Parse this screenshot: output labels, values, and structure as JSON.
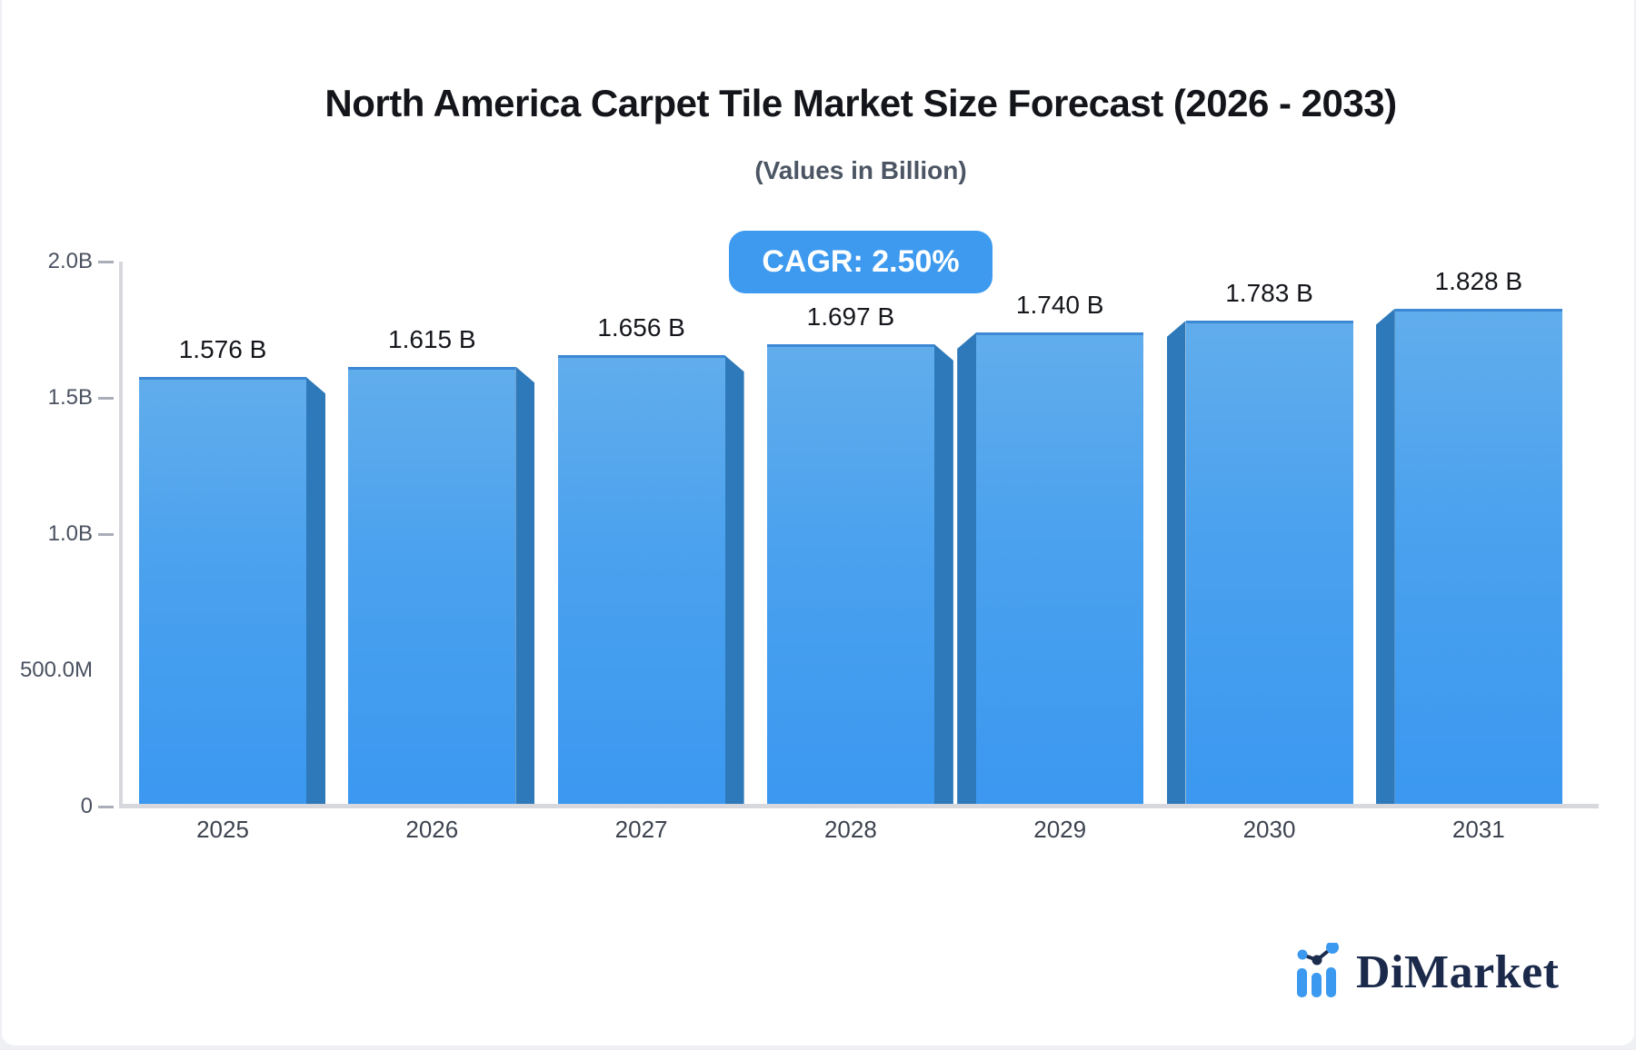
{
  "page": {
    "background": "#eef0f3",
    "card_background": "#ffffff"
  },
  "chart_data": {
    "type": "bar",
    "title": "North America Carpet Tile Market Size Forecast (2026 - 2033)",
    "subtitle": "(Values in Billion)",
    "categories": [
      "2025",
      "2026",
      "2027",
      "2028",
      "2029",
      "2030",
      "2031"
    ],
    "values": [
      1.576,
      1.615,
      1.656,
      1.697,
      1.74,
      1.783,
      1.828
    ],
    "value_labels": [
      "1.576 B",
      "1.615 B",
      "1.656 B",
      "1.697 B",
      "1.740 B",
      "1.783 B",
      "1.828 B"
    ],
    "unit": "Billion",
    "ylim": [
      0,
      2.0
    ],
    "y_ticks": [
      {
        "label": "2.0B",
        "value": 2.0,
        "dash": true
      },
      {
        "label": "1.5B",
        "value": 1.5,
        "dash": true
      },
      {
        "label": "1.0B",
        "value": 1.0,
        "dash": true
      },
      {
        "label": "500.0M",
        "value": 0.5,
        "dash": false
      },
      {
        "label": "0",
        "value": 0.0,
        "dash": true
      }
    ],
    "grid": false,
    "legend": "none",
    "bar_style_3d": true,
    "colors": {
      "bar_face_top": "#61ADEC",
      "bar_face_bottom": "#3B98F0",
      "bar_face_top_border": "#3C88D4",
      "bar_side": "#2E79BA",
      "axis_line": "#D6D8DE",
      "tick_dash": "#A9AEB8",
      "tick_label": "#4A5160",
      "category_label": "#3D434F",
      "value_label": "#15171C"
    }
  },
  "badge": {
    "label": "CAGR: 2.50%",
    "background": "#3D9AEF",
    "text_color": "#FFFFFF"
  },
  "logo": {
    "text": "DiMarket",
    "text_color": "#1B2A4A",
    "icon": "mini-bar-line-chart-icon",
    "icon_bar_color": "#3B99F0",
    "icon_line_color": "#1C2C4D"
  }
}
